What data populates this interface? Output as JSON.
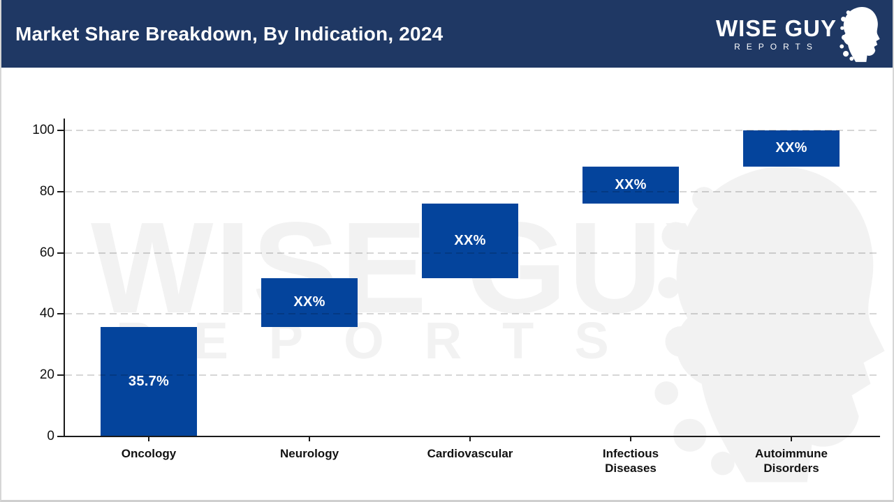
{
  "header": {
    "title": "Market Share Breakdown, By Indication, 2024",
    "logo": {
      "line1": "WISE GUY",
      "line2": "REPORTS"
    }
  },
  "watermark": {
    "line1": "WISE GUY",
    "line2": "REPORTS"
  },
  "colors": {
    "header_bg": "#1f3864",
    "bar": "#04449c",
    "bar_label": "#ffffff",
    "grid": "#d9d9d9",
    "axis": "#1a1a1a",
    "watermark": "#f2f2f2",
    "title_text": "#ffffff"
  },
  "chart_data": {
    "type": "bar",
    "subtype": "waterfall",
    "title": "Market Share Breakdown, By Indication, 2024",
    "categories": [
      "Oncology",
      "Neurology",
      "Cardiovascular",
      "Infectious\nDiseases",
      "Autoimmune\nDisorders"
    ],
    "segments": [
      {
        "category": "Oncology",
        "start": 0,
        "end": 35.7,
        "label": "35.7%"
      },
      {
        "category": "Neurology",
        "start": 35.7,
        "end": 51.8,
        "label": "XX%"
      },
      {
        "category": "Cardiovascular",
        "start": 51.8,
        "end": 76.1,
        "label": "XX%"
      },
      {
        "category": "Infectious Diseases",
        "start": 76.1,
        "end": 88.2,
        "label": "XX%"
      },
      {
        "category": "Autoimmune Disorders",
        "start": 88.2,
        "end": 100,
        "label": "XX%"
      }
    ],
    "yticks": [
      0,
      20,
      40,
      60,
      80,
      100
    ],
    "ylim": [
      0,
      104
    ],
    "xlabel": "",
    "ylabel": "",
    "grid": "horizontal-dashed",
    "legend": "none",
    "bar_color": "#04449c",
    "bar_label_color": "#ffffff"
  }
}
